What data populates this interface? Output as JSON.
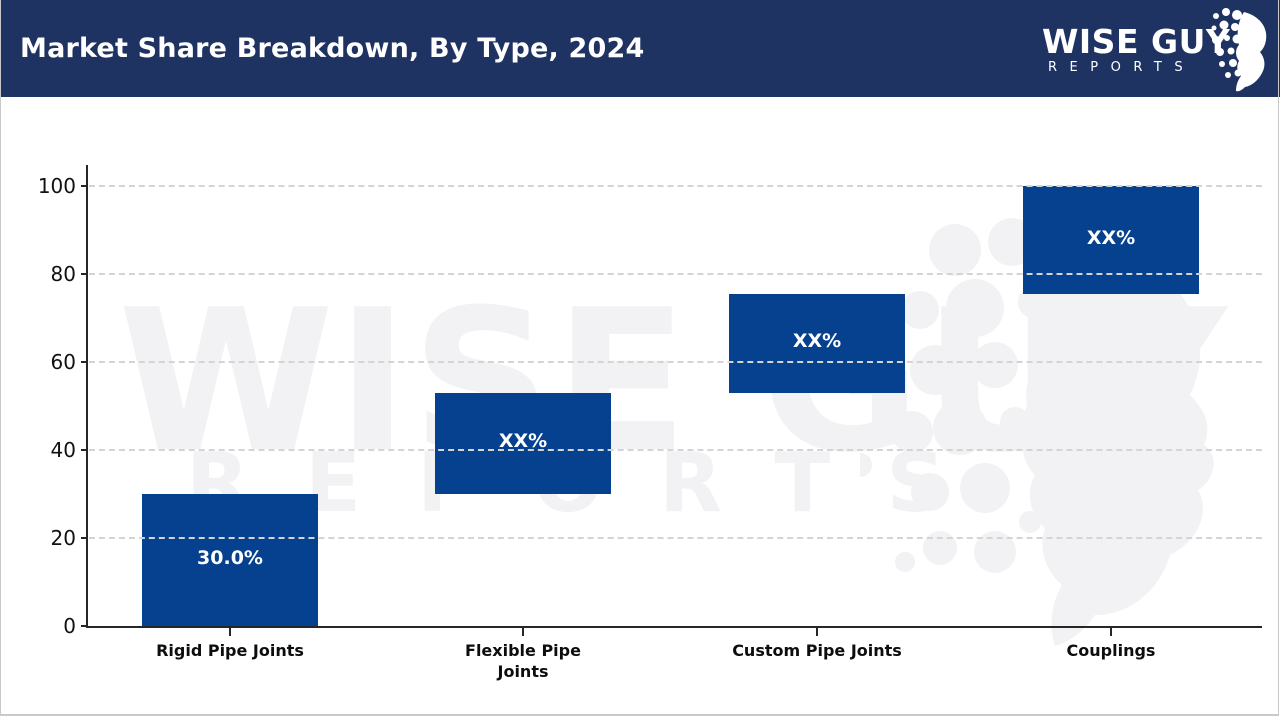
{
  "header": {
    "title": "Market Share Breakdown, By Type, 2024",
    "logo": {
      "line1": "WISE GUY",
      "line2": "REPORTS"
    }
  },
  "watermark": {
    "line1": "WISE GUY",
    "line2": "REPORTS"
  },
  "chart_data": {
    "type": "bar",
    "variant": "waterfall",
    "title": "Market Share Breakdown, By Type, 2024",
    "xlabel": "",
    "ylabel": "",
    "categories": [
      "Rigid Pipe Joints",
      "Flexible Pipe\nJoints",
      "Custom Pipe Joints",
      "Couplings"
    ],
    "segments": [
      {
        "category": "Rigid Pipe Joints",
        "start": 0,
        "end": 30,
        "label": "30.0%"
      },
      {
        "category": "Flexible Pipe Joints",
        "start": 30,
        "end": 53,
        "label": "XX%"
      },
      {
        "category": "Custom Pipe Joints",
        "start": 53,
        "end": 75.5,
        "label": "XX%"
      },
      {
        "category": "Couplings",
        "start": 75.5,
        "end": 100,
        "label": "XX%"
      }
    ],
    "yticks": [
      0,
      20,
      40,
      60,
      80,
      100
    ],
    "ylim": [
      0,
      105
    ],
    "grid": true,
    "grid_style": "dashed",
    "bar_color": "#05418e",
    "bar_label_color": "#ffffff",
    "header_color": "#1f3363",
    "axis_color": "#262626"
  }
}
